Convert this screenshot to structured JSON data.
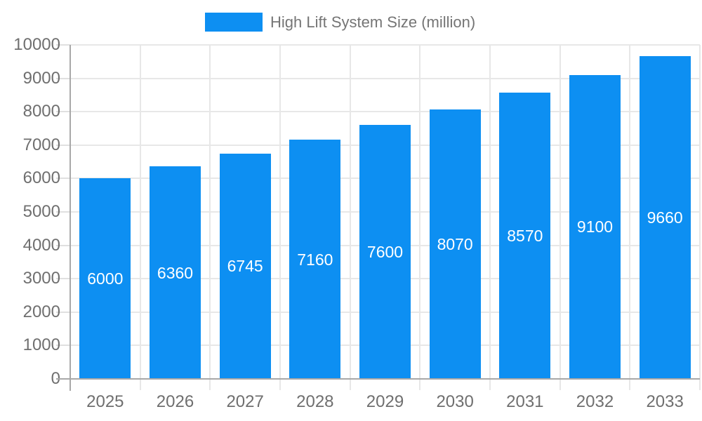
{
  "legend": {
    "label": "High Lift System Size (million)",
    "color": "#0d8ff2"
  },
  "chart_data": {
    "type": "bar",
    "title": "",
    "series_name": "High Lift System Size (million)",
    "categories": [
      "2025",
      "2026",
      "2027",
      "2028",
      "2029",
      "2030",
      "2031",
      "2032",
      "2033"
    ],
    "values": [
      6000,
      6360,
      6745,
      7160,
      7600,
      8070,
      8570,
      9100,
      9660
    ],
    "xlabel": "",
    "ylabel": "",
    "ylim": [
      0,
      10000
    ],
    "yticks": [
      0,
      1000,
      2000,
      3000,
      4000,
      5000,
      6000,
      7000,
      8000,
      9000,
      10000
    ],
    "grid": true,
    "legend_position": "top",
    "bar_color": "#0d8ff2",
    "bar_label_color": "#ffffff",
    "axis_label_color": "#6f6f6f"
  }
}
